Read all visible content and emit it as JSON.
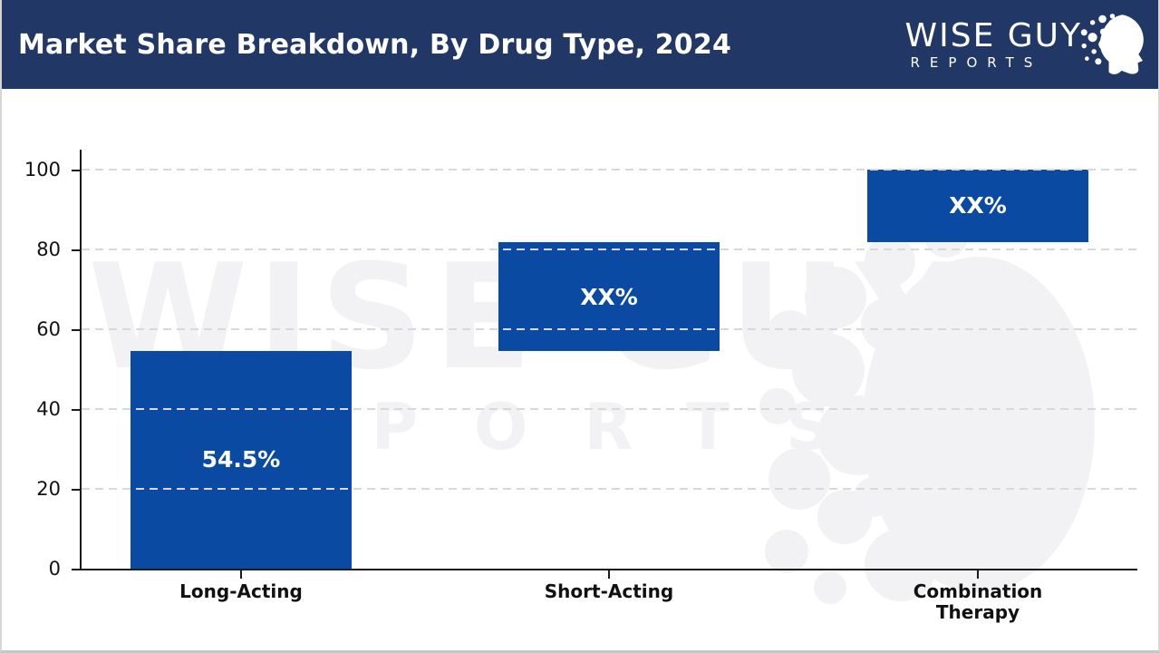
{
  "header": {
    "title": "Market Share Breakdown, By Drug Type, 2024",
    "logo": {
      "line1": "WISE GUY",
      "line2": "REPORTS"
    }
  },
  "watermark": {
    "line1": "WISE GUY",
    "line2": "REPORTS"
  },
  "chart_data": {
    "type": "bar",
    "subtype": "waterfall-floating-bars",
    "title": "Market Share Breakdown, By Drug Type, 2024",
    "categories": [
      "Long-Acting",
      "Short-Acting",
      "Combination Therapy"
    ],
    "x_tick_labels": [
      "Long-Acting",
      "Short-Acting",
      "Combination\nTherapy"
    ],
    "bars": [
      {
        "category": "Long-Acting",
        "start": 0,
        "end": 54.5,
        "label": "54.5%"
      },
      {
        "category": "Short-Acting",
        "start": 54.5,
        "end": 81.7,
        "label": "XX%"
      },
      {
        "category": "Combination Therapy",
        "start": 81.7,
        "end": 100,
        "label": "XX%"
      }
    ],
    "y_ticks": [
      0,
      20,
      40,
      60,
      80,
      100
    ],
    "ylim": [
      0,
      105
    ],
    "xlabel": "",
    "ylabel": "",
    "grid": "horizontal-dashed",
    "legend": "none"
  },
  "theme": {
    "header_bg": "#213765",
    "bar_blue": "#0b4aa2",
    "grid_color": "#d8d8d8",
    "axis_color": "#1a1a1a",
    "watermark_color": "#f2f2f5",
    "title_color": "#ffffff",
    "bar_label_color": "#ffffff"
  }
}
